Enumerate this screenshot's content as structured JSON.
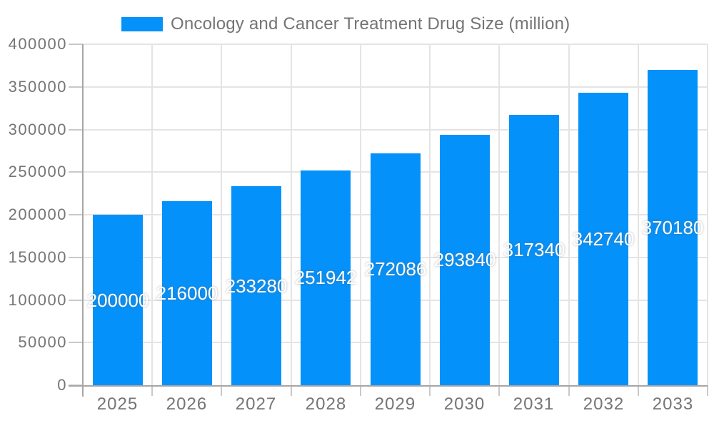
{
  "chart_data": {
    "type": "bar",
    "title": "Oncology and Cancer Treatment Drug Size (million)",
    "legend_position": "top",
    "categories": [
      "2025",
      "2026",
      "2027",
      "2028",
      "2029",
      "2030",
      "2031",
      "2032",
      "2033"
    ],
    "series": [
      {
        "name": "Oncology and Cancer Treatment Drug Size (million)",
        "values": [
          200000,
          216000,
          233280,
          251942,
          272086,
          293840,
          317340,
          342740,
          370180
        ]
      }
    ],
    "xlabel": "",
    "ylabel": "",
    "ylim": [
      0,
      400000
    ],
    "yticks": [
      0,
      50000,
      100000,
      150000,
      200000,
      250000,
      300000,
      350000,
      400000
    ],
    "grid": true,
    "data_labels_visible": true,
    "colors": {
      "bar": "#0591fa",
      "bar_label_text": "#ffffff",
      "axis_text": "#757575",
      "axis_line": "#a6a6a6",
      "gridline": "#e4e4e4",
      "background": "#ffffff"
    }
  }
}
